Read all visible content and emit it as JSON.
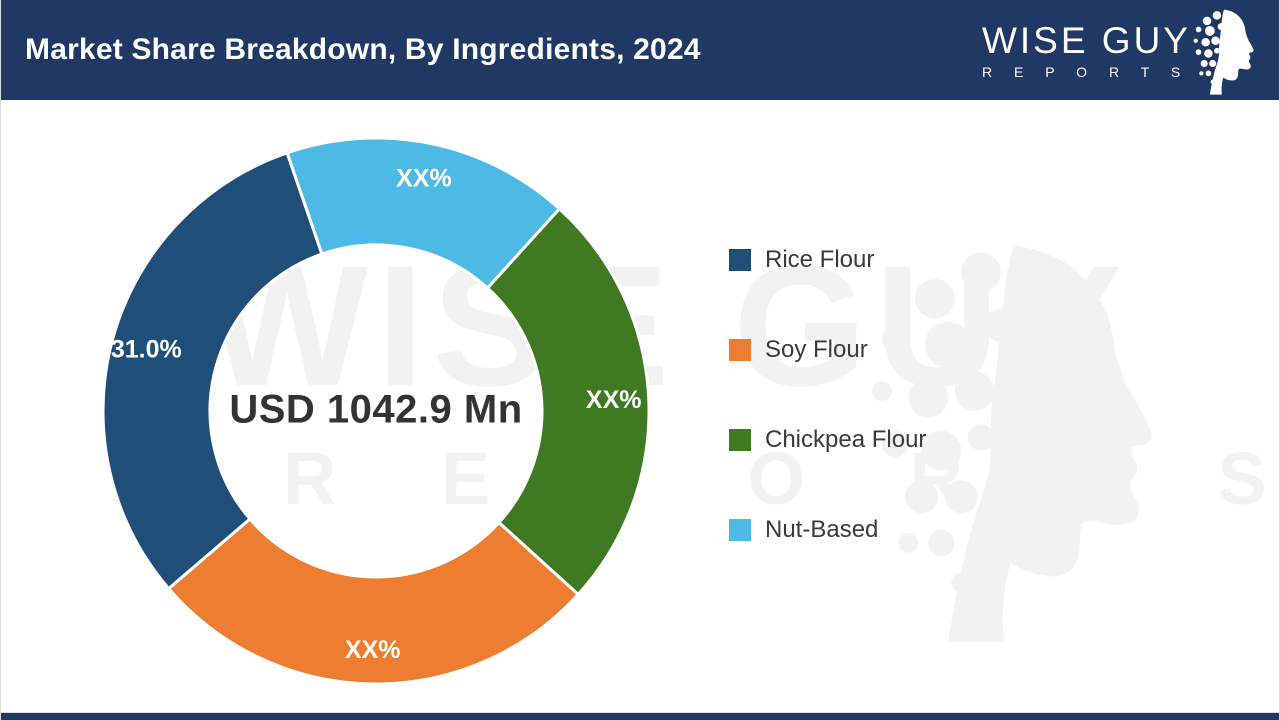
{
  "header": {
    "title": "Market Share Breakdown, By Ingredients, 2024",
    "logo": {
      "line1": "WISE GUY",
      "line2": "R E P O R T S"
    }
  },
  "watermark": {
    "line1": "WISE GUY",
    "line2": "R E P O R T S"
  },
  "colors": {
    "header_bar": "#203864",
    "footer_bar": "#203864",
    "watermark": "#f2f2f2",
    "center_text": "#333333",
    "legend_text": "#3a3a3a"
  },
  "chart_data": {
    "type": "pie",
    "subtype": "donut",
    "title": "Market Share Breakdown, By Ingredients, 2024",
    "center_label": "USD 1042.9 Mn",
    "legend_position": "right",
    "start_angle_deg": 109,
    "direction": "counterclockwise",
    "segments": [
      {
        "label": "Rice Flour",
        "value": 31.0,
        "display": "31.0%",
        "color": "#1F4E79"
      },
      {
        "label": "Soy Flour",
        "value": 27.0,
        "display": "XX%",
        "color": "#ED7D31"
      },
      {
        "label": "Chickpea Flour",
        "value": 25.0,
        "display": "XX%",
        "color": "#3F7A23"
      },
      {
        "label": "Nut-Based",
        "value": 17.0,
        "display": "XX%",
        "color": "#4DB9E5"
      }
    ]
  }
}
